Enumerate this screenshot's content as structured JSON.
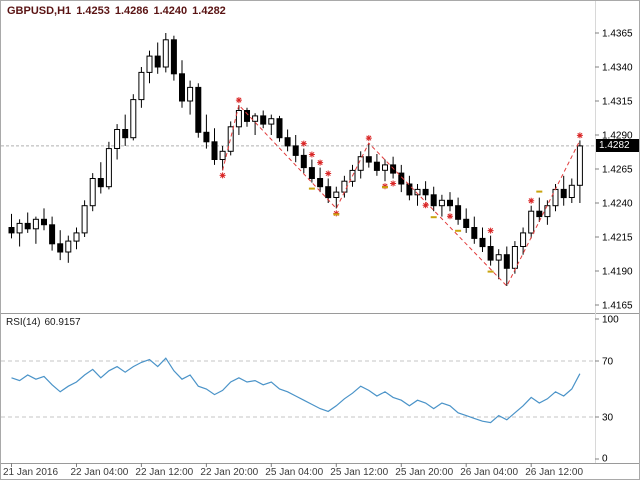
{
  "header": {
    "symbol": "GBPUSD,H1",
    "open": "1.4253",
    "high": "1.4286",
    "low": "1.4240",
    "close": "1.4282"
  },
  "rsi_header": {
    "name": "RSI(14)",
    "value": "60.9157"
  },
  "price_axis": {
    "current_price_label": "1.4282"
  },
  "chart_data": {
    "type": "candlestick",
    "title": "GBPUSD,H1",
    "timeframe": "H1",
    "ohlc_display": {
      "open": 1.4253,
      "high": 1.4286,
      "low": 1.424,
      "close": 1.4282
    },
    "ylim": [
      1.41606,
      1.43885
    ],
    "price_ticks": [
      1.4365,
      1.434,
      1.4315,
      1.429,
      1.4265,
      1.424,
      1.4215,
      1.419,
      1.4165
    ],
    "current_price": 1.4282,
    "time_labels": [
      {
        "label": "21 Jan 2016",
        "i": 0
      },
      {
        "label": "22 Jan 04:00",
        "i": 8
      },
      {
        "label": "22 Jan 12:00",
        "i": 16
      },
      {
        "label": "22 Jan 20:00",
        "i": 24
      },
      {
        "label": "25 Jan 04:00",
        "i": 32
      },
      {
        "label": "25 Jan 12:00",
        "i": 40
      },
      {
        "label": "25 Jan 20:00",
        "i": 48
      },
      {
        "label": "26 Jan 04:00",
        "i": 56
      },
      {
        "label": "26 Jan 12:00",
        "i": 64
      }
    ],
    "candles": [
      [
        1.4222,
        1.4232,
        1.4214,
        1.4218
      ],
      [
        1.4218,
        1.4228,
        1.4208,
        1.4225
      ],
      [
        1.4225,
        1.4233,
        1.4218,
        1.4221
      ],
      [
        1.4221,
        1.423,
        1.421,
        1.4228
      ],
      [
        1.4228,
        1.4236,
        1.422,
        1.4224
      ],
      [
        1.4224,
        1.423,
        1.4205,
        1.421
      ],
      [
        1.421,
        1.422,
        1.4198,
        1.4204
      ],
      [
        1.4204,
        1.4216,
        1.4196,
        1.4212
      ],
      [
        1.4212,
        1.4222,
        1.4206,
        1.4218
      ],
      [
        1.4218,
        1.4242,
        1.4215,
        1.4238
      ],
      [
        1.4238,
        1.4262,
        1.4234,
        1.4258
      ],
      [
        1.4258,
        1.427,
        1.4247,
        1.4252
      ],
      [
        1.4252,
        1.4285,
        1.425,
        1.428
      ],
      [
        1.428,
        1.4298,
        1.4272,
        1.4294
      ],
      [
        1.4294,
        1.4305,
        1.4282,
        1.4288
      ],
      [
        1.4288,
        1.432,
        1.4286,
        1.4316
      ],
      [
        1.4316,
        1.434,
        1.431,
        1.4336
      ],
      [
        1.4336,
        1.4352,
        1.4328,
        1.4348
      ],
      [
        1.4348,
        1.4358,
        1.4335,
        1.434
      ],
      [
        1.434,
        1.4365,
        1.4336,
        1.436
      ],
      [
        1.436,
        1.4363,
        1.433,
        1.4335
      ],
      [
        1.4335,
        1.4345,
        1.431,
        1.4315
      ],
      [
        1.4315,
        1.433,
        1.4305,
        1.4325
      ],
      [
        1.4325,
        1.4328,
        1.4288,
        1.4292
      ],
      [
        1.4292,
        1.4305,
        1.428,
        1.4285
      ],
      [
        1.4285,
        1.4295,
        1.4268,
        1.4272
      ],
      [
        1.4272,
        1.4282,
        1.4264,
        1.4278
      ],
      [
        1.4278,
        1.43,
        1.4275,
        1.4296
      ],
      [
        1.4296,
        1.4312,
        1.429,
        1.4308
      ],
      [
        1.4308,
        1.431,
        1.4296,
        1.43
      ],
      [
        1.43,
        1.4306,
        1.429,
        1.4304
      ],
      [
        1.4304,
        1.4308,
        1.4295,
        1.4298
      ],
      [
        1.4298,
        1.4305,
        1.429,
        1.4302
      ],
      [
        1.4302,
        1.4304,
        1.4285,
        1.4288
      ],
      [
        1.4288,
        1.4294,
        1.4278,
        1.4282
      ],
      [
        1.4282,
        1.429,
        1.427,
        1.4275
      ],
      [
        1.4275,
        1.428,
        1.4262,
        1.4266
      ],
      [
        1.4266,
        1.4272,
        1.4255,
        1.4258
      ],
      [
        1.4258,
        1.4266,
        1.4248,
        1.4252
      ],
      [
        1.4252,
        1.4258,
        1.424,
        1.4244
      ],
      [
        1.4244,
        1.4252,
        1.4236,
        1.4248
      ],
      [
        1.4248,
        1.426,
        1.4244,
        1.4256
      ],
      [
        1.4256,
        1.4268,
        1.4252,
        1.4264
      ],
      [
        1.4264,
        1.4278,
        1.4258,
        1.4274
      ],
      [
        1.4274,
        1.4284,
        1.4266,
        1.427
      ],
      [
        1.427,
        1.4276,
        1.426,
        1.4264
      ],
      [
        1.4264,
        1.4272,
        1.4256,
        1.4268
      ],
      [
        1.4268,
        1.4274,
        1.4258,
        1.4262
      ],
      [
        1.4262,
        1.4268,
        1.4248,
        1.4254
      ],
      [
        1.4254,
        1.426,
        1.4242,
        1.4246
      ],
      [
        1.4246,
        1.4254,
        1.4238,
        1.425
      ],
      [
        1.425,
        1.4256,
        1.4242,
        1.4246
      ],
      [
        1.4246,
        1.4252,
        1.4234,
        1.4238
      ],
      [
        1.4238,
        1.4246,
        1.423,
        1.4242
      ],
      [
        1.4242,
        1.4248,
        1.4234,
        1.4238
      ],
      [
        1.4238,
        1.4244,
        1.4224,
        1.4228
      ],
      [
        1.4228,
        1.4236,
        1.4218,
        1.4222
      ],
      [
        1.4222,
        1.423,
        1.421,
        1.4214
      ],
      [
        1.4214,
        1.4222,
        1.4204,
        1.4208
      ],
      [
        1.4208,
        1.4216,
        1.4194,
        1.4198
      ],
      [
        1.4198,
        1.4206,
        1.4184,
        1.4202
      ],
      [
        1.4202,
        1.4208,
        1.4179,
        1.4192
      ],
      [
        1.4192,
        1.4212,
        1.4188,
        1.4208
      ],
      [
        1.4208,
        1.4222,
        1.4202,
        1.4218
      ],
      [
        1.4218,
        1.4238,
        1.4214,
        1.4234
      ],
      [
        1.4234,
        1.4244,
        1.4226,
        1.423
      ],
      [
        1.423,
        1.4242,
        1.4224,
        1.4238
      ],
      [
        1.4238,
        1.4254,
        1.4234,
        1.425
      ],
      [
        1.425,
        1.426,
        1.4238,
        1.4244
      ],
      [
        1.4244,
        1.4258,
        1.424,
        1.4253
      ],
      [
        1.4253,
        1.4286,
        1.424,
        1.4282
      ]
    ],
    "zigzag": [
      {
        "i": 26,
        "side": "low"
      },
      {
        "i": 28,
        "side": "high"
      },
      {
        "i": 40,
        "side": "low"
      },
      {
        "i": 44,
        "side": "high"
      },
      {
        "i": 61,
        "side": "low"
      },
      {
        "i": 70,
        "side": "high"
      }
    ],
    "markers": [
      {
        "i": 26,
        "side": "low"
      },
      {
        "i": 28,
        "side": "high"
      },
      {
        "i": 36,
        "side": "high"
      },
      {
        "i": 37,
        "side": "high"
      },
      {
        "i": 38,
        "side": "high"
      },
      {
        "i": 39,
        "side": "high"
      },
      {
        "i": 40,
        "side": "low"
      },
      {
        "i": 44,
        "side": "high"
      },
      {
        "i": 46,
        "side": "low"
      },
      {
        "i": 47,
        "side": "low"
      },
      {
        "i": 51,
        "side": "low"
      },
      {
        "i": 54,
        "side": "low"
      },
      {
        "i": 59,
        "side": "high"
      },
      {
        "i": 64,
        "side": "high"
      },
      {
        "i": 70,
        "side": "high"
      }
    ],
    "yellow_markers": [
      {
        "i": 37,
        "side": "low"
      },
      {
        "i": 40,
        "side": "low"
      },
      {
        "i": 46,
        "side": "low"
      },
      {
        "i": 52,
        "side": "low"
      },
      {
        "i": 55,
        "side": "low"
      },
      {
        "i": 59,
        "side": "low"
      },
      {
        "i": 65,
        "side": "high"
      }
    ],
    "indicator": {
      "name": "RSI(14)",
      "value": 60.9157,
      "ylim": [
        0,
        100
      ],
      "ticks": [
        100,
        70,
        30,
        0
      ],
      "levels": [
        70,
        30
      ],
      "values": [
        58,
        56,
        60,
        57,
        59,
        53,
        48,
        52,
        55,
        60,
        64,
        58,
        63,
        66,
        62,
        66,
        69,
        71,
        66,
        72,
        63,
        57,
        60,
        52,
        50,
        46,
        49,
        55,
        58,
        55,
        56,
        53,
        55,
        50,
        48,
        45,
        42,
        39,
        36,
        34,
        38,
        43,
        47,
        52,
        49,
        45,
        48,
        44,
        42,
        38,
        42,
        40,
        36,
        40,
        38,
        33,
        31,
        29,
        27,
        26,
        31,
        28,
        33,
        38,
        44,
        40,
        43,
        48,
        45,
        50,
        60.9157
      ]
    },
    "colors": {
      "bull": "#ffffff",
      "bear": "#000000",
      "wick": "#000000",
      "zigzag": "#e13b3b",
      "marker": "#d92626",
      "yellow": "#c9a40e",
      "rsi_line": "#4a93c8",
      "level_dash": "#c4c4c4",
      "price_line": "#b0b0b0",
      "badge_bg": "#000000",
      "badge_text": "#ffffff",
      "header_text": "#5a1414",
      "separator": "#9a9a9a",
      "axis_text": "#000000",
      "time_text": "#3a3a3a"
    }
  }
}
